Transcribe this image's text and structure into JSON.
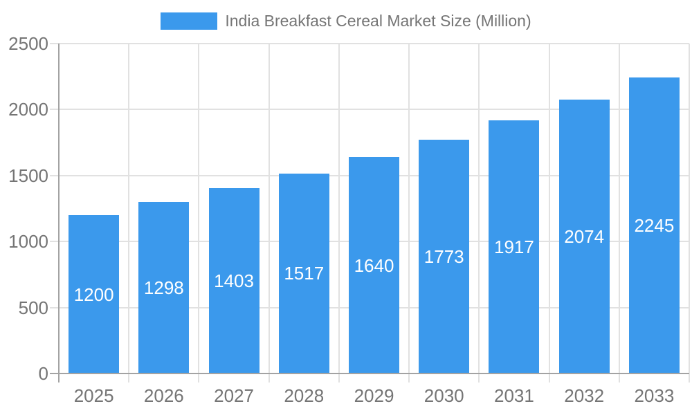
{
  "legend": {
    "label": "India Breakfast Cereal Market Size (Million)"
  },
  "chart_data": {
    "type": "bar",
    "title": "India Breakfast Cereal Market Size (Million)",
    "categories": [
      "2025",
      "2026",
      "2027",
      "2028",
      "2029",
      "2030",
      "2031",
      "2032",
      "2033"
    ],
    "values": [
      1200,
      1298,
      1403,
      1517,
      1640,
      1773,
      1917,
      2074,
      2245
    ],
    "xlabel": "",
    "ylabel": "",
    "ylim": [
      0,
      2500
    ],
    "yticks": [
      0,
      500,
      1000,
      1500,
      2000,
      2500
    ],
    "grid": true,
    "legend_position": "top-center",
    "value_label_position": "inside-center"
  },
  "colors": {
    "bar": "#3b99ec",
    "gridline": "#e1e1e1",
    "axis_line": "#a3a3a3",
    "tick_text": "#757575",
    "legend_text": "#757575",
    "value_label": "#ffffff",
    "background": "#ffffff"
  }
}
